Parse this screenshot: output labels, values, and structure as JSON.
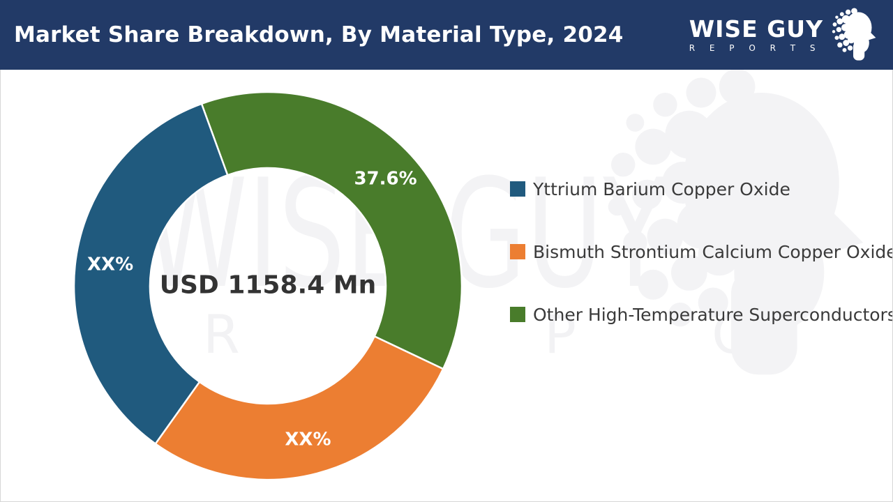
{
  "header": {
    "title": "Market Share Breakdown, By Material Type, 2024",
    "logo": {
      "line1": "WISE GUY",
      "line2": "R E P O R T S"
    }
  },
  "watermark": {
    "line1": "WISE GUY",
    "line2": "R E P O R T S"
  },
  "chart_data": {
    "type": "donut",
    "title": "Market Share Breakdown, By Material Type, 2024",
    "center_label": "USD 1158.4 Mn",
    "start_angle_deg": -20,
    "outer_radius": 278,
    "inner_radius": 169,
    "label_radius": 228,
    "segments": [
      {
        "name": "Other High-Temperature Superconductors",
        "label": "37.6%",
        "sweep_pct": 37.6,
        "color": "#497c2b"
      },
      {
        "name": "Bismuth Strontium Calcium Copper Oxide",
        "label": "XX%",
        "sweep_pct": 27.8,
        "color": "#ec7e32"
      },
      {
        "name": "Yttrium Barium Copper Oxide",
        "label": "XX%",
        "sweep_pct": 34.6,
        "color": "#205a7e"
      }
    ],
    "legend": [
      {
        "label": "Yttrium Barium Copper Oxide",
        "color": "#205a7e"
      },
      {
        "label": "Bismuth Strontium Calcium Copper Oxide",
        "color": "#ec7e32"
      },
      {
        "label": "Other High-Temperature Superconductors",
        "color": "#497c2b"
      }
    ],
    "legend_position": "right"
  },
  "colors": {
    "header_bg": "#223a67",
    "center_text": "#333333",
    "legend_text": "#3a3a3a",
    "watermark": "#f3f3f5",
    "border": "#d6d6d6"
  }
}
